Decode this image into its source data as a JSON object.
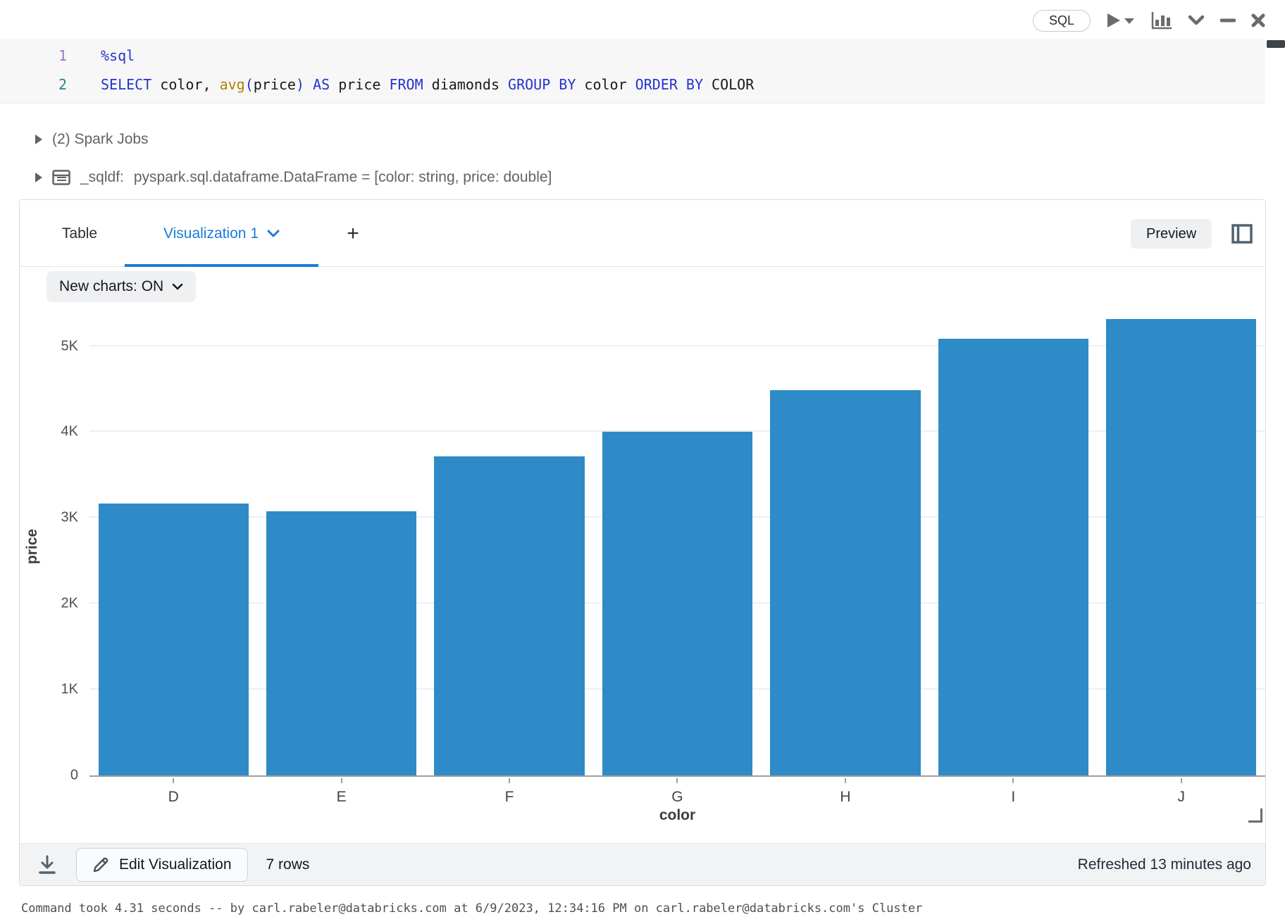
{
  "accent_blue": "#1a7cd8",
  "toolbar": {
    "lang_badge": "SQL",
    "icons": [
      "run-button",
      "run-options-caret",
      "chart-view-icon",
      "collapse-chevron",
      "minimize",
      "close"
    ]
  },
  "code": {
    "lines": [
      {
        "num": "1",
        "num_class": "ln-magic",
        "tokens": [
          {
            "text": "%sql",
            "type": "magic"
          }
        ]
      },
      {
        "num": "2",
        "num_class": "ln-code",
        "tokens": [
          {
            "text": "SELECT",
            "type": "kw"
          },
          {
            "text": " color, ",
            "type": "plain"
          },
          {
            "text": "avg",
            "type": "fn"
          },
          {
            "text": "(",
            "type": "kw"
          },
          {
            "text": "price",
            "type": "plain"
          },
          {
            "text": ")",
            "type": "kw"
          },
          {
            "text": " ",
            "type": "plain"
          },
          {
            "text": "AS",
            "type": "kw"
          },
          {
            "text": " price ",
            "type": "plain"
          },
          {
            "text": "FROM",
            "type": "kw"
          },
          {
            "text": " diamonds ",
            "type": "plain"
          },
          {
            "text": "GROUP BY",
            "type": "kw"
          },
          {
            "text": " color ",
            "type": "plain"
          },
          {
            "text": "ORDER BY",
            "type": "kw"
          },
          {
            "text": " COLOR",
            "type": "plain"
          }
        ]
      }
    ]
  },
  "spark_jobs": {
    "label": "(2) Spark Jobs"
  },
  "sqldf": {
    "name": "_sqldf:",
    "type_info": "pyspark.sql.dataframe.DataFrame = [color: string, price: double]"
  },
  "results": {
    "tab_table": "Table",
    "tab_viz": "Visualization 1",
    "add_tab": "+",
    "preview_label": "Preview",
    "new_charts_label": "New charts: ON"
  },
  "chart_data": {
    "type": "bar",
    "title": "",
    "categories": [
      "D",
      "E",
      "F",
      "G",
      "H",
      "I",
      "J"
    ],
    "values": [
      3170,
      3080,
      3720,
      4000,
      4490,
      5090,
      5320
    ],
    "xlabel": "color",
    "ylabel": "price",
    "ylim": [
      0,
      5415
    ],
    "yticks": [
      {
        "label": "0",
        "value": 0
      },
      {
        "label": "1K",
        "value": 1000
      },
      {
        "label": "2K",
        "value": 2000
      },
      {
        "label": "3K",
        "value": 3000
      },
      {
        "label": "4K",
        "value": 4000
      },
      {
        "label": "5K",
        "value": 5000
      }
    ],
    "grid": true,
    "legend": false,
    "bar_color": "#2E8BC8"
  },
  "actions": {
    "edit_button": "Edit Visualization",
    "row_count": "7 rows",
    "refreshed": "Refreshed 13 minutes ago"
  },
  "status_line": "Command took 4.31 seconds -- by carl.rabeler@databricks.com at 6/9/2023, 12:34:16 PM on carl.rabeler@databricks.com's Cluster"
}
